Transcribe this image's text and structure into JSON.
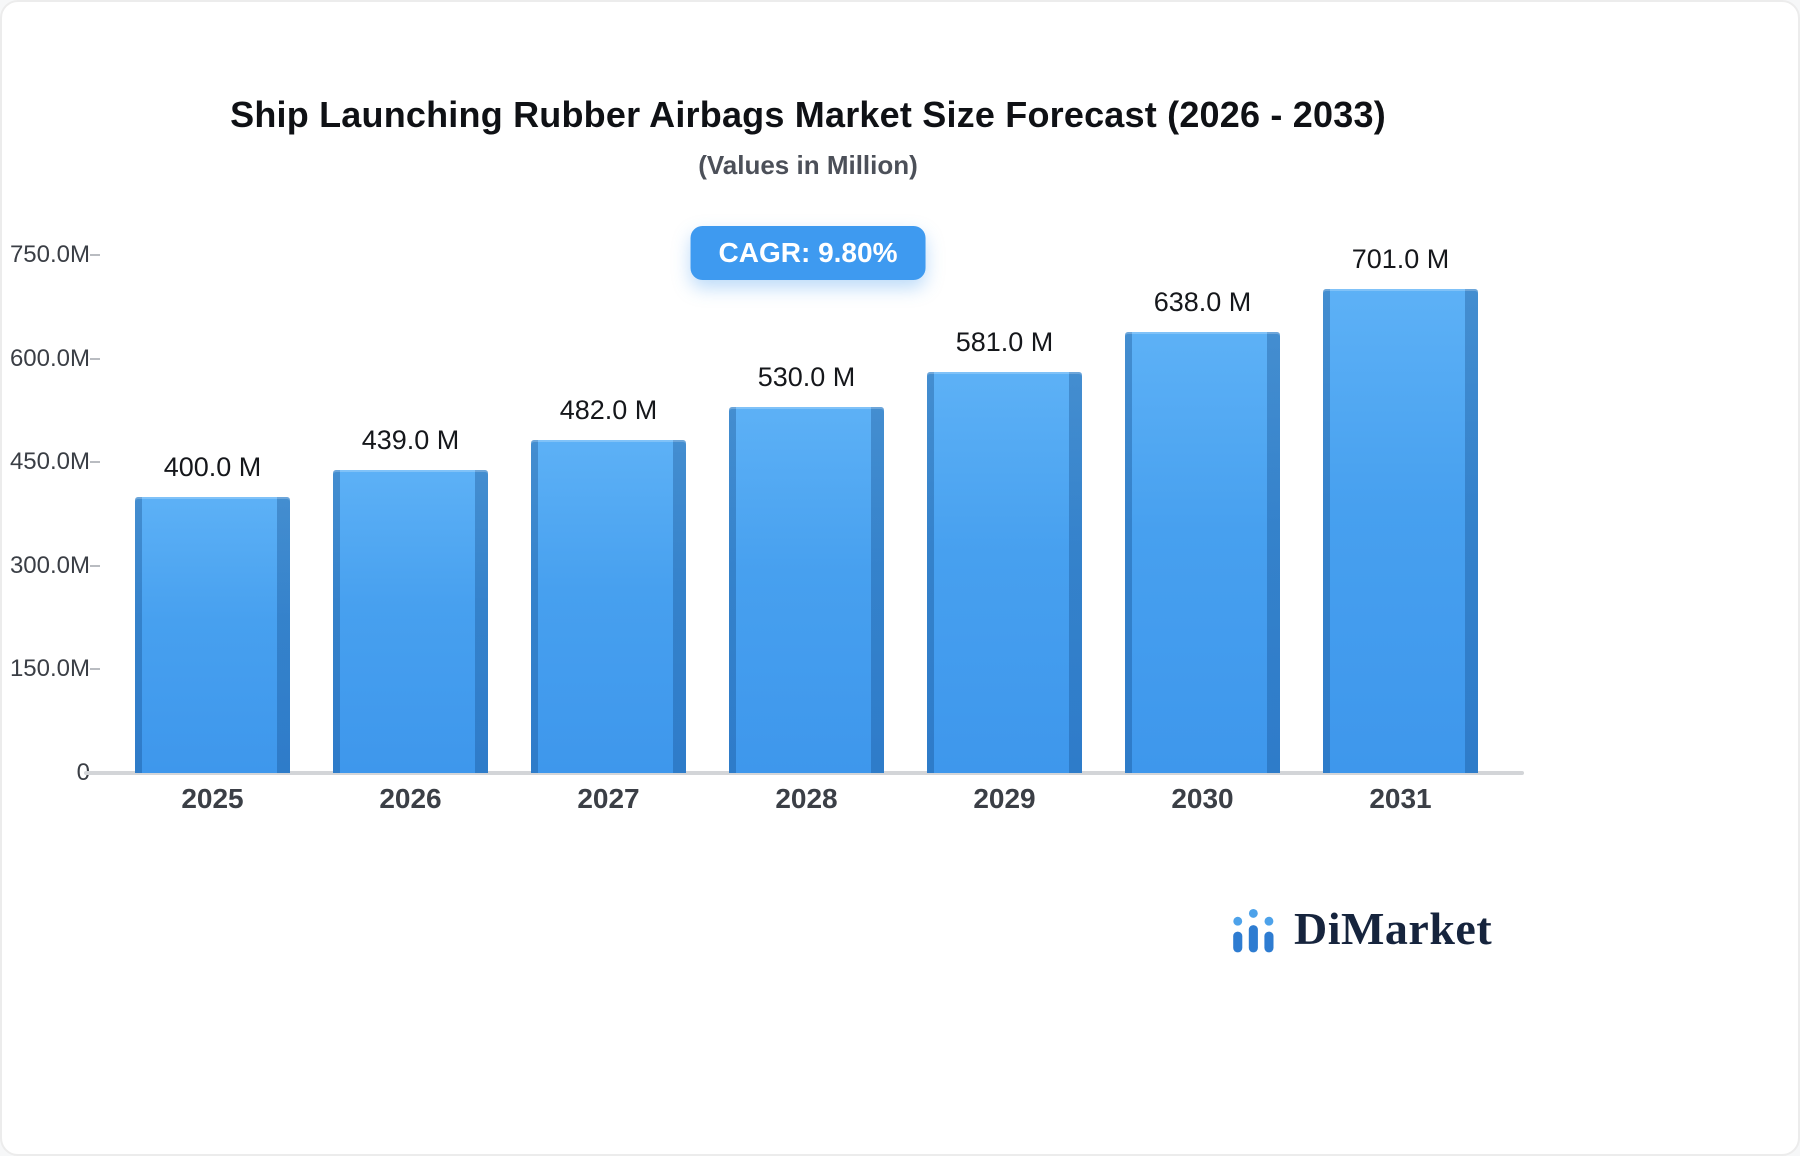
{
  "badge": {
    "label": "CAGR: 9.80%"
  },
  "logo": {
    "text": "DiMarket",
    "icon": "bar-chart-icon"
  },
  "colors": {
    "bar_main": "#47A0EF",
    "bar_light": "#5DB1F6",
    "bar_edge_dark": "#2B7FD0",
    "badge_bg": "#3E9AF0",
    "baseline": "#D3D5D8",
    "title_text": "#0F1115",
    "subtitle_text": "#4C5059",
    "axis_text": "#3A3E45",
    "logo_navy": "#16243D",
    "logo_blue": "#2E7CD1"
  },
  "chart_data": {
    "type": "bar",
    "title": "Ship Launching Rubber Airbags Market Size Forecast (2026 - 2033)",
    "subtitle": "(Values in Million)",
    "categories": [
      "2025",
      "2026",
      "2027",
      "2028",
      "2029",
      "2030",
      "2031"
    ],
    "values": [
      400.0,
      439.0,
      482.0,
      530.0,
      581.0,
      638.0,
      701.0
    ],
    "value_labels": [
      "400.0 M",
      "439.0 M",
      "482.0 M",
      "530.0 M",
      "581.0 M",
      "638.0 M",
      "701.0 M"
    ],
    "xlabel": "",
    "ylabel": "",
    "ylim": [
      0,
      750
    ],
    "yticks": [
      0,
      150,
      300,
      450,
      600,
      750
    ],
    "ytick_labels": [
      "0",
      "150.0M",
      "300.0M",
      "450.0M",
      "600.0M",
      "750.0M"
    ],
    "grid": false,
    "legend": false,
    "annotations": [
      "CAGR: 9.80%"
    ]
  }
}
